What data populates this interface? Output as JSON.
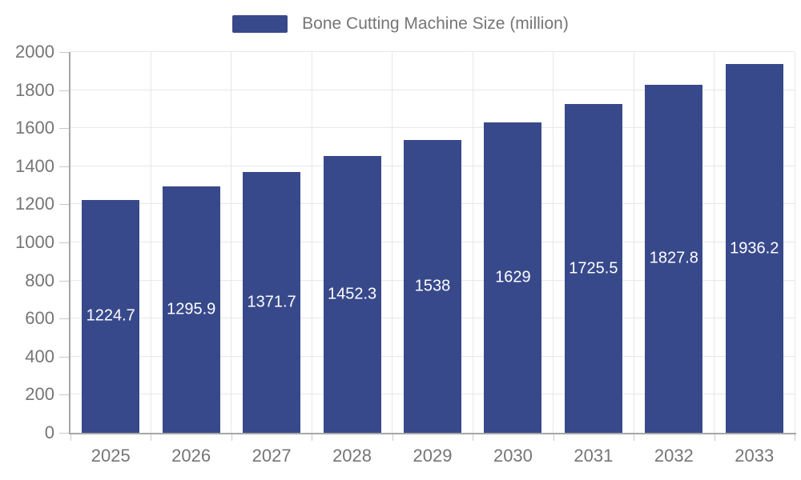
{
  "legend": {
    "label": "Bone Cutting Machine Size (million)"
  },
  "chart_data": {
    "type": "bar",
    "title": "Bone Cutting Machine Size (million)",
    "series_name": "Bone Cutting Machine Size (million)",
    "categories": [
      "2025",
      "2026",
      "2027",
      "2028",
      "2029",
      "2030",
      "2031",
      "2032",
      "2033"
    ],
    "values": [
      1224.7,
      1295.9,
      1371.7,
      1452.3,
      1538,
      1629,
      1725.5,
      1827.8,
      1936.2
    ],
    "xlabel": "",
    "ylabel": "",
    "ylim": [
      0,
      2000
    ],
    "ytick_step": 200,
    "grid": true,
    "legend_position": "top",
    "value_labels": "inside-center",
    "colors": {
      "bar": "#38498B",
      "axis_text": "#757575",
      "legend_text": "#757575",
      "grid_line": "#e7e7e7",
      "axis_line": "#a6a6a6",
      "tick_line": "#c9c9c9",
      "value_label": "#ffffff",
      "background": "#ffffff"
    }
  }
}
